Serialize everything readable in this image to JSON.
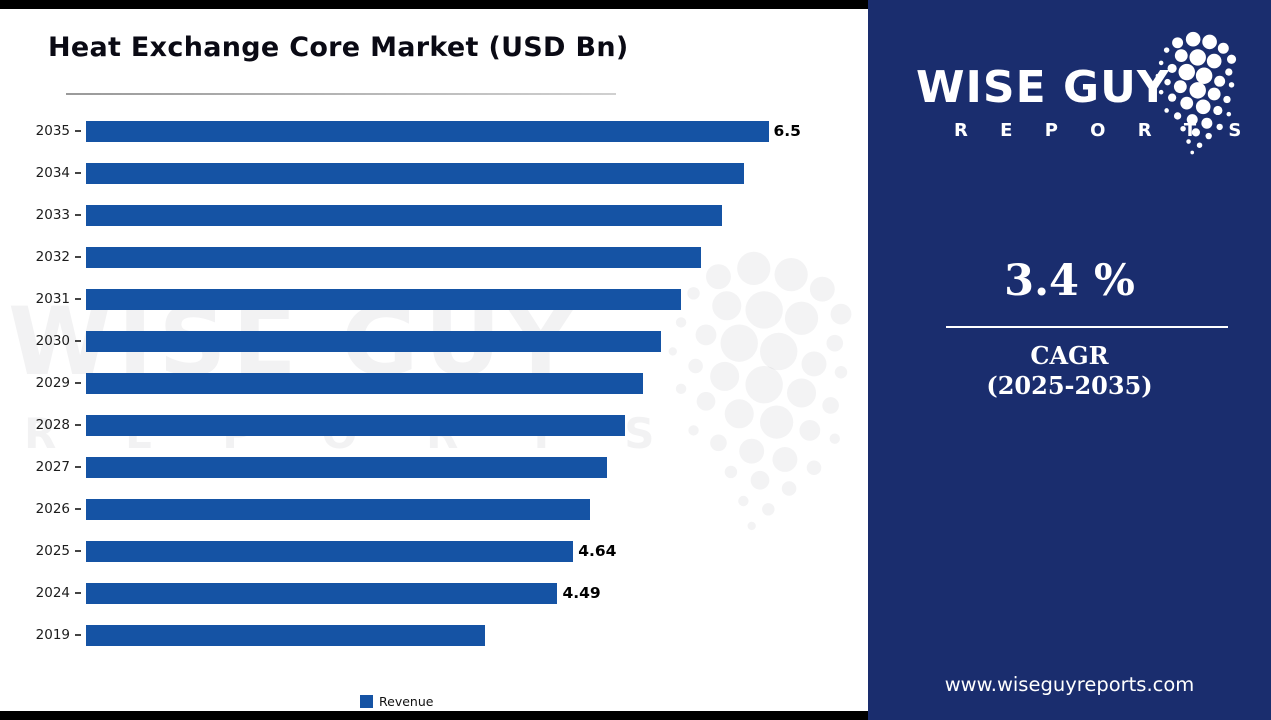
{
  "chart_data": {
    "type": "bar",
    "orientation": "horizontal",
    "title": "Heat Exchange Core Market (USD Bn)",
    "categories": [
      "2035",
      "2034",
      "2033",
      "2032",
      "2031",
      "2030",
      "2029",
      "2028",
      "2027",
      "2026",
      "2025",
      "2024",
      "2019"
    ],
    "values": [
      6.5,
      6.27,
      6.06,
      5.86,
      5.67,
      5.48,
      5.3,
      5.13,
      4.96,
      4.8,
      4.64,
      4.49,
      3.8
    ],
    "value_labels": [
      "6.5",
      "",
      "",
      "",
      "",
      "",
      "",
      "",
      "",
      "",
      "4.64",
      "4.49",
      ""
    ],
    "xlabel": "",
    "ylabel": "",
    "xlim": [
      0,
      7
    ],
    "grid": false,
    "legend": [
      "Revenue"
    ],
    "legend_position": "bottom",
    "bar_color": "#1553a4"
  },
  "watermark": {
    "line1": "WISE GUY",
    "line2": "R E P O R T S"
  },
  "sidebar": {
    "background": "#1a2d6e",
    "logo_line1": "WISE GUY",
    "logo_line2": "R E P O R T S",
    "cagr_value": "3.4 %",
    "cagr_label": "CAGR",
    "cagr_range": "(2025-2035)",
    "website": "www.wiseguyreports.com"
  }
}
